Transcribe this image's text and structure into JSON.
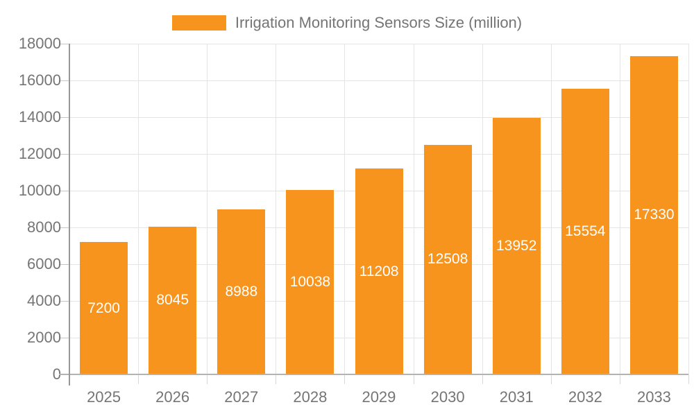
{
  "chart_data": {
    "type": "bar",
    "title": "Irrigation Monitoring Sensors Size (million)",
    "legend": {
      "label": "Irrigation Monitoring Sensors Size (million)",
      "position": "top"
    },
    "categories": [
      "2025",
      "2026",
      "2027",
      "2028",
      "2029",
      "2030",
      "2031",
      "2032",
      "2033"
    ],
    "values": [
      7200,
      8045,
      8988,
      10038,
      11208,
      12508,
      13952,
      15554,
      17330
    ],
    "xlabel": "",
    "ylabel": "",
    "ylim": [
      0,
      18000
    ],
    "ytick_step": 2000,
    "grid": true,
    "colors": {
      "bar": "#f7941e",
      "bar_label_text": "#ffffff",
      "axis_text": "#757575",
      "gridline": "#e4e4e4",
      "y_axis_line": "#979797",
      "x_axis_line": "#b3b3b3",
      "background": "#ffffff"
    }
  }
}
